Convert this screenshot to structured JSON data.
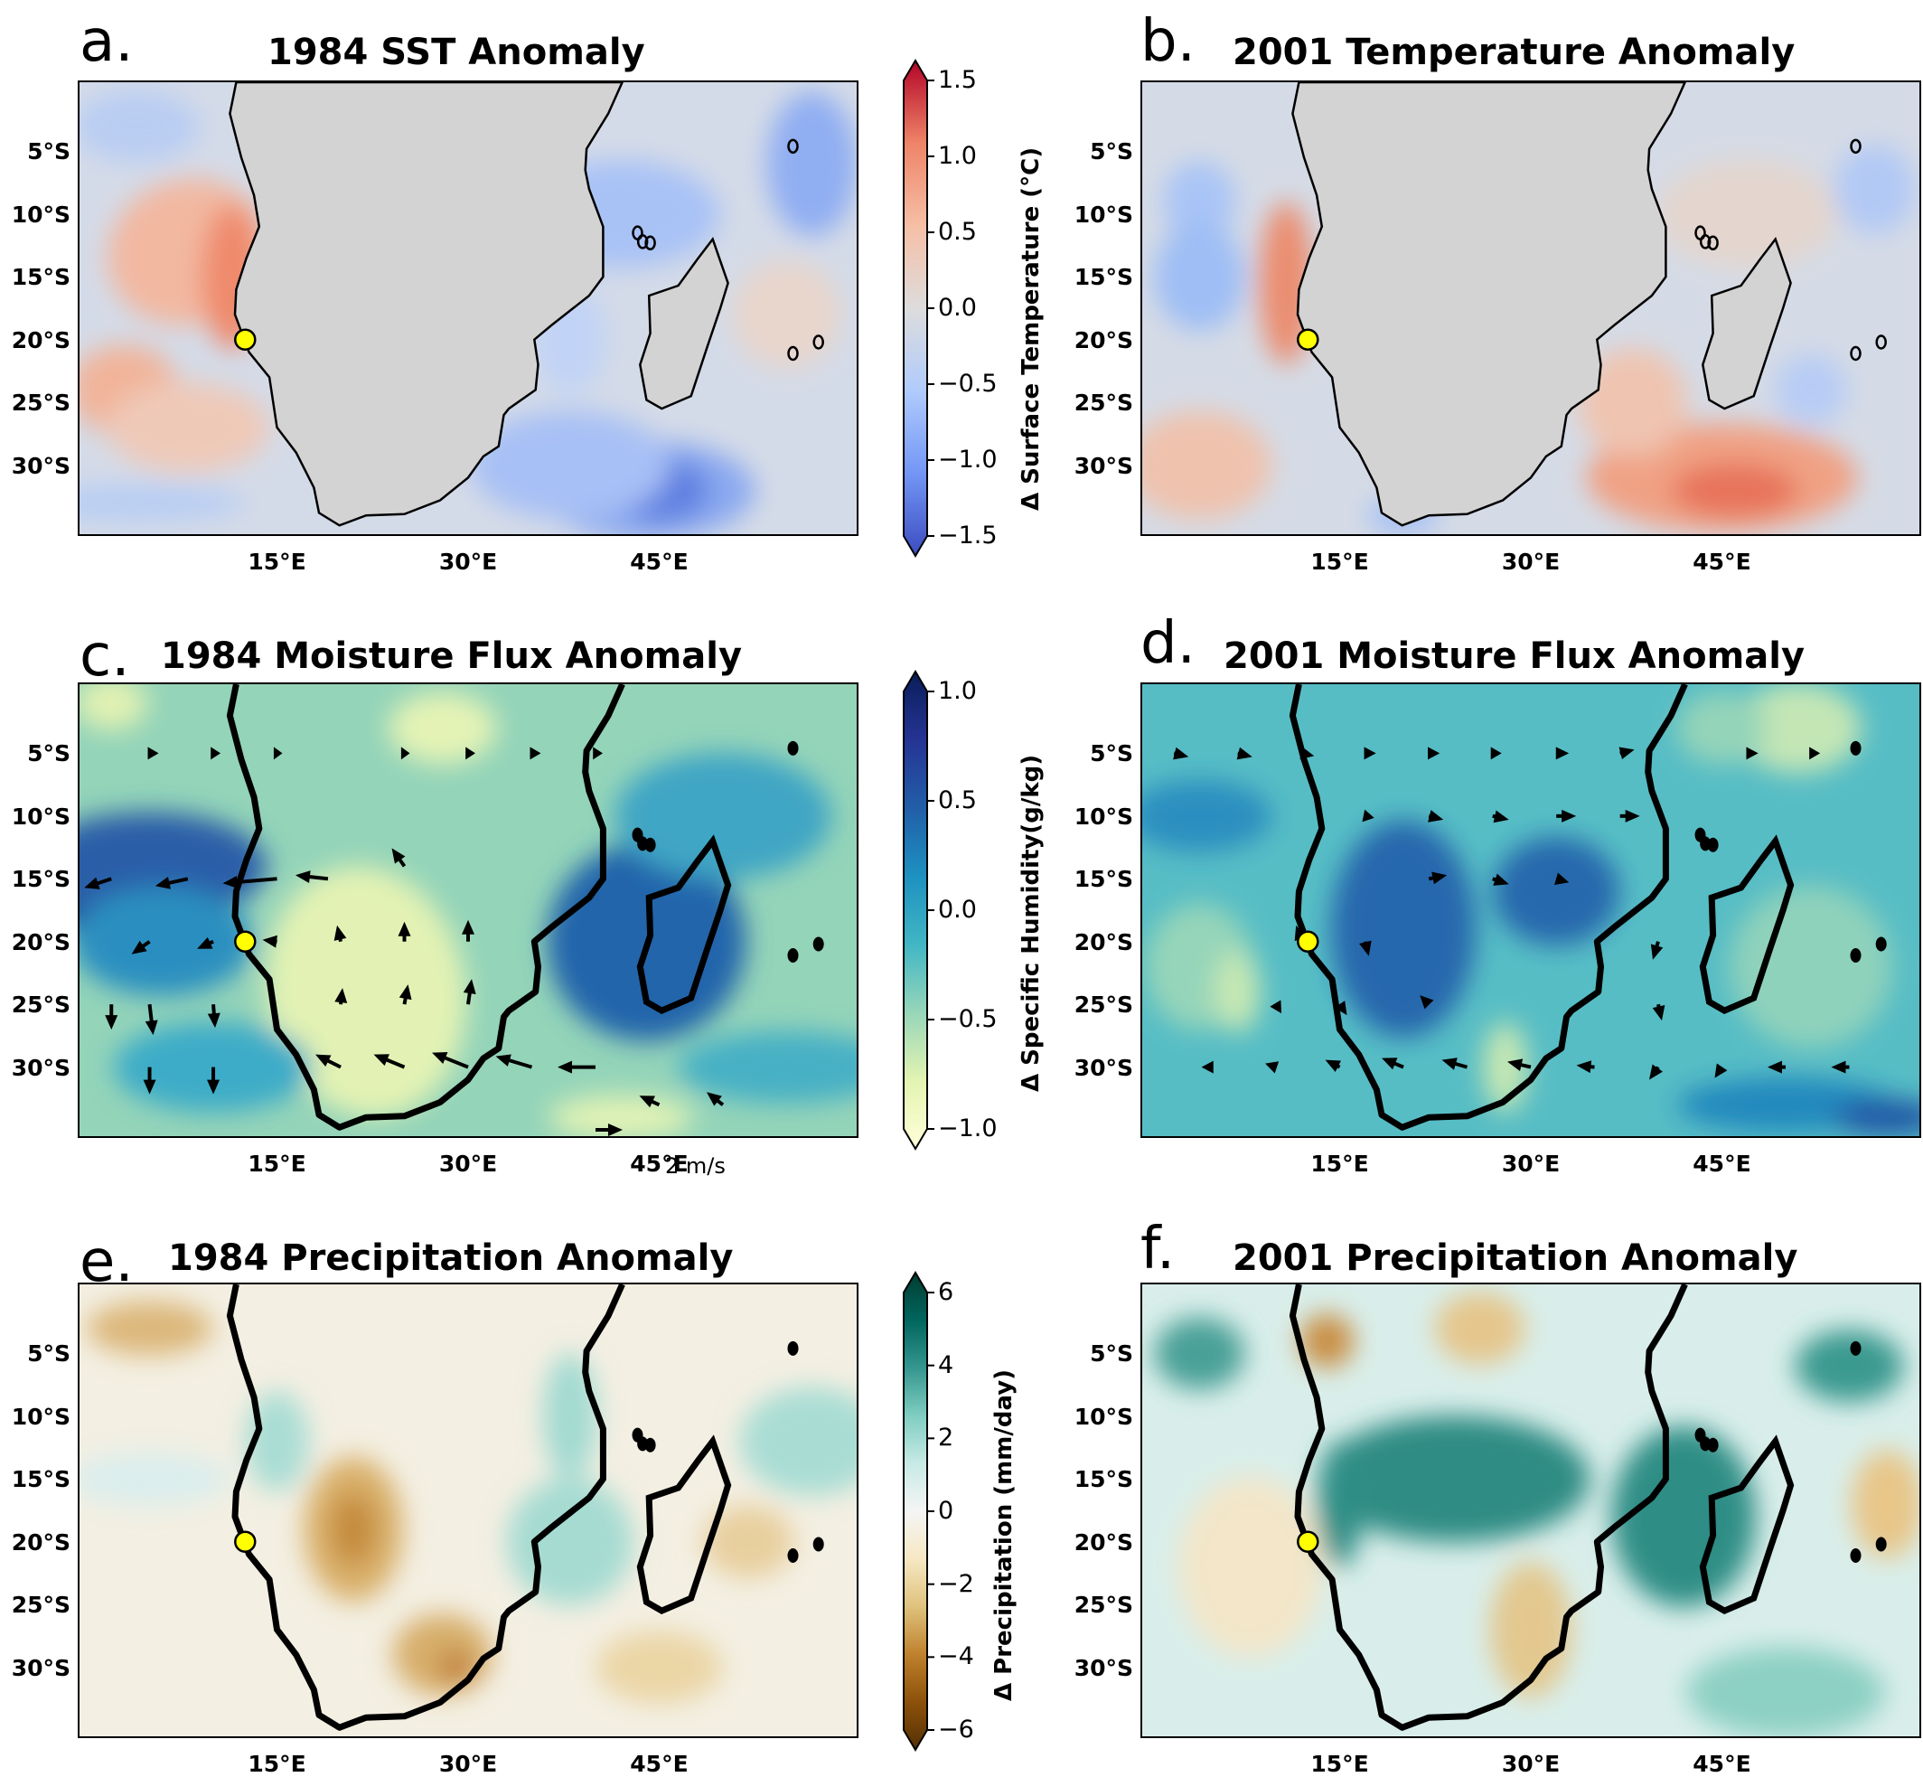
{
  "figure": {
    "panels": [
      {
        "id": "a",
        "letter": "a.",
        "title": "1984 SST Anomaly",
        "variable": "surface_temperature",
        "year": "1984",
        "land_fill": "#d3d3d3"
      },
      {
        "id": "b",
        "letter": "b.",
        "title": "2001 Temperature Anomaly",
        "variable": "surface_temperature",
        "year": "2001",
        "land_fill": "#d3d3d3"
      },
      {
        "id": "c",
        "letter": "c.",
        "title": "1984 Moisture Flux Anomaly",
        "variable": "specific_humidity",
        "year": "1984"
      },
      {
        "id": "d",
        "letter": "d.",
        "title": "2001 Moisture Flux Anomaly",
        "variable": "specific_humidity",
        "year": "2001"
      },
      {
        "id": "e",
        "letter": "e.",
        "title": "1984 Precipitation Anomaly",
        "variable": "precipitation",
        "year": "1984"
      },
      {
        "id": "f",
        "letter": "f.",
        "title": "2001 Precipitation Anomaly",
        "variable": "precipitation",
        "year": "2001"
      }
    ],
    "lat_ticks": [
      "5°S",
      "10°S",
      "15°S",
      "20°S",
      "25°S",
      "30°S"
    ],
    "lon_ticks": [
      "15°E",
      "30°E",
      "45°E"
    ],
    "colorbars": [
      {
        "row": 0,
        "label": "Δ Surface Temperature (°C)",
        "ticks": [
          "1.5",
          "1.0",
          "0.5",
          "0.0",
          "−0.5",
          "−1.0",
          "−1.5"
        ],
        "range": [
          -1.5,
          1.5
        ],
        "colormap": "coolwarm",
        "colors": [
          "#3b4cc0",
          "#7396f5",
          "#b0cbfc",
          "#dddcdc",
          "#f6bfa6",
          "#ee8468",
          "#b40426"
        ]
      },
      {
        "row": 1,
        "label": "Δ Specific Humidity(g/kg)",
        "ticks": [
          "1.0",
          "0.5",
          "0.0",
          "−0.5",
          "−1.0"
        ],
        "range": [
          -1.0,
          1.0
        ],
        "colormap": "YlGnBu",
        "colors": [
          "#ffffd9",
          "#e3f4b1",
          "#97d6b9",
          "#41b6c4",
          "#1d91c0",
          "#225ea8",
          "#253494",
          "#081d58"
        ]
      },
      {
        "row": 2,
        "label": "Δ Precipitation (mm/day)",
        "ticks": [
          "6",
          "4",
          "2",
          "0",
          "−2",
          "−4",
          "−6"
        ],
        "range": [
          -6,
          6
        ],
        "colormap": "BrBG",
        "colors": [
          "#543005",
          "#8c510a",
          "#bf812d",
          "#dfc27d",
          "#f6e8c3",
          "#f5f5f5",
          "#c7eae5",
          "#80cdc1",
          "#35978f",
          "#01665e",
          "#003c30"
        ]
      }
    ],
    "quiver_key": "2 m/s",
    "marker": {
      "label": "site",
      "lat": -20,
      "lon": 12.5,
      "color": "#ffff00"
    },
    "chart_data": [
      {
        "type": "heatmap",
        "panel": "a",
        "title": "1984 SST Anomaly",
        "units": "°C",
        "vmin": -1.5,
        "vmax": 1.5,
        "extent": {
          "lon": [
            0,
            60
          ],
          "lat": [
            -35,
            0
          ]
        },
        "features": [
          {
            "desc": "warm anomaly Benguela coast",
            "lat": -17,
            "lon": 11,
            "value": 1.3
          },
          {
            "desc": "warm SE Atlantic",
            "lat": -12,
            "lon": 5,
            "value": 0.5
          },
          {
            "desc": "cold SW Indian Ocean",
            "lat": -32,
            "lon": 45,
            "value": -1.2
          },
          {
            "desc": "cool Mozambique Channel",
            "lat": -15,
            "lon": 42,
            "value": -0.6
          }
        ]
      },
      {
        "type": "heatmap",
        "panel": "b",
        "title": "2001 Temperature Anomaly",
        "units": "°C",
        "vmin": -1.5,
        "vmax": 1.5,
        "extent": {
          "lon": [
            0,
            60
          ],
          "lat": [
            -35,
            0
          ]
        },
        "features": [
          {
            "desc": "warm anomaly Angola/Namibia coast",
            "lat": -16,
            "lon": 11,
            "value": 1.4
          },
          {
            "desc": "warm SW Indian Ocean",
            "lat": -32,
            "lon": 45,
            "value": 0.8
          },
          {
            "desc": "cool open Atlantic",
            "lat": -12,
            "lon": 3,
            "value": -0.4
          }
        ]
      },
      {
        "type": "heatmap",
        "panel": "c",
        "title": "1984 Moisture Flux Anomaly",
        "units": "g/kg",
        "vmin": -1.0,
        "vmax": 1.0,
        "extent": {
          "lon": [
            0,
            60
          ],
          "lat": [
            -35,
            0
          ]
        },
        "features": [
          {
            "desc": "moist SE Atlantic",
            "lat": -15,
            "lon": 2,
            "value": 0.9
          },
          {
            "desc": "dry southern Africa interior",
            "lat": -23,
            "lon": 22,
            "value": -1.0
          },
          {
            "desc": "moist Mozambique Channel",
            "lat": -20,
            "lon": 43,
            "value": 0.6
          }
        ],
        "vectors": "westward flux anomalies near 15°S and 30°S"
      },
      {
        "type": "heatmap",
        "panel": "d",
        "title": "2001 Moisture Flux Anomaly",
        "units": "g/kg",
        "vmin": -1.0,
        "vmax": 1.0,
        "extent": {
          "lon": [
            0,
            60
          ],
          "lat": [
            -35,
            0
          ]
        },
        "features": [
          {
            "desc": "moist interior Angola/Zambia",
            "lat": -19,
            "lon": 20,
            "value": 0.7
          },
          {
            "desc": "moist Mozambique",
            "lat": -20,
            "lon": 35,
            "value": 0.5
          },
          {
            "desc": "slightly dry west coast",
            "lat": -20,
            "lon": 8,
            "value": -0.3
          }
        ],
        "vectors": "eastward flux anomalies near 5°S-15°S, westward near 30°S"
      },
      {
        "type": "heatmap",
        "panel": "e",
        "title": "1984 Precipitation Anomaly",
        "units": "mm/day",
        "vmin": -6,
        "vmax": 6,
        "extent": {
          "lon": [
            0,
            60
          ],
          "lat": [
            -35,
            0
          ]
        },
        "features": [
          {
            "desc": "dry Botswana",
            "lat": -19,
            "lon": 21,
            "value": -3.5
          },
          {
            "desc": "dry SE South Africa",
            "lat": -29,
            "lon": 28,
            "value": -3
          },
          {
            "desc": "wet Mozambique",
            "lat": -20,
            "lon": 38,
            "value": 3
          },
          {
            "desc": "wet Angola coast",
            "lat": -13,
            "lon": 14,
            "value": 2.5
          },
          {
            "desc": "wet NE Indian Ocean",
            "lat": -11,
            "lon": 56,
            "value": 3
          }
        ]
      },
      {
        "type": "heatmap",
        "panel": "f",
        "title": "2001 Precipitation Anomaly",
        "units": "mm/day",
        "vmin": -6,
        "vmax": 6,
        "extent": {
          "lon": [
            0,
            60
          ],
          "lat": [
            -35,
            0
          ]
        },
        "features": [
          {
            "desc": "wet band Angola-Zambia",
            "lat": -15,
            "lon": 24,
            "value": 5.5
          },
          {
            "desc": "very wet Mozambique/Madagascar",
            "lat": -17,
            "lon": 42,
            "value": 6
          },
          {
            "desc": "dry South Africa",
            "lat": -27,
            "lon": 30,
            "value": -3.5
          },
          {
            "desc": "wet NW Atlantic corner",
            "lat": -5,
            "lon": 4,
            "value": 3
          }
        ]
      }
    ]
  }
}
